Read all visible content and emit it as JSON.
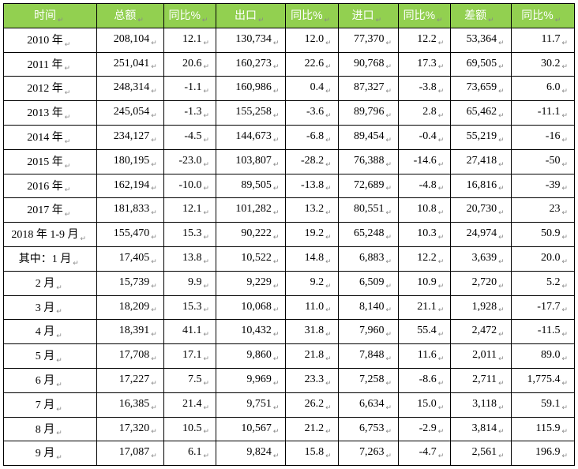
{
  "table": {
    "header_bg": "#92d050",
    "header_fg": "#ffffff",
    "border_color": "#000000",
    "marker_char": "↵",
    "columns": [
      "时间",
      "总额",
      "同比%",
      "出口",
      "同比%",
      "进口",
      "同比%",
      "差额",
      "同比%"
    ],
    "rows": [
      [
        "2010 年",
        "208,104",
        "12.1",
        "130,734",
        "12.0",
        "77,370",
        "12.2",
        "53,364",
        "11.7"
      ],
      [
        "2011 年",
        "251,041",
        "20.6",
        "160,273",
        "22.6",
        "90,768",
        "17.3",
        "69,505",
        "30.2"
      ],
      [
        "2012 年",
        "248,314",
        "-1.1",
        "160,986",
        "0.4",
        "87,327",
        "-3.8",
        "73,659",
        "6.0"
      ],
      [
        "2013 年",
        "245,054",
        "-1.3",
        "155,258",
        "-3.6",
        "89,796",
        "2.8",
        "65,462",
        "-11.1"
      ],
      [
        "2014 年",
        "234,127",
        "-4.5",
        "144,673",
        "-6.8",
        "89,454",
        "-0.4",
        "55,219",
        "-16"
      ],
      [
        "2015 年",
        "180,195",
        "-23.0",
        "103,807",
        "-28.2",
        "76,388",
        "-14.6",
        "27,418",
        "-50"
      ],
      [
        "2016 年",
        "162,194",
        "-10.0",
        "89,505",
        "-13.8",
        "72,689",
        "-4.8",
        "16,816",
        "-39"
      ],
      [
        "2017 年",
        "181,833",
        "12.1",
        "101,282",
        "13.2",
        "80,551",
        "10.8",
        "20,730",
        "23"
      ],
      [
        "2018 年 1-9 月",
        "155,470",
        "15.3",
        "90,222",
        "19.2",
        "65,248",
        "10.3",
        "24,974",
        "50.9"
      ],
      [
        "其中：1 月",
        "17,405",
        "13.8",
        "10,522",
        "14.8",
        "6,883",
        "12.2",
        "3,639",
        "20.0"
      ],
      [
        "2 月",
        "15,739",
        "9.9",
        "9,229",
        "9.2",
        "6,509",
        "10.9",
        "2,720",
        "5.2"
      ],
      [
        "3 月",
        "18,209",
        "15.3",
        "10,068",
        "11.0",
        "8,140",
        "21.1",
        "1,928",
        "-17.7"
      ],
      [
        "4 月",
        "18,391",
        "41.1",
        "10,432",
        "31.8",
        "7,960",
        "55.4",
        "2,472",
        "-11.5"
      ],
      [
        "5 月",
        "17,708",
        "17.1",
        "9,860",
        "21.8",
        "7,848",
        "11.6",
        "2,011",
        "89.0"
      ],
      [
        "6 月",
        "17,227",
        "7.5",
        "9,969",
        "23.3",
        "7,258",
        "-8.6",
        "2,711",
        "1,775.4"
      ],
      [
        "7 月",
        "16,385",
        "21.4",
        "9,751",
        "26.2",
        "6,634",
        "15.0",
        "3,118",
        "59.1"
      ],
      [
        "8 月",
        "17,320",
        "10.5",
        "10,567",
        "21.2",
        "6,753",
        "-2.9",
        "3,814",
        "115.9"
      ],
      [
        "9 月",
        "17,087",
        "6.1",
        "9,824",
        "15.8",
        "7,263",
        "-4.7",
        "2,561",
        "196.9"
      ]
    ]
  }
}
